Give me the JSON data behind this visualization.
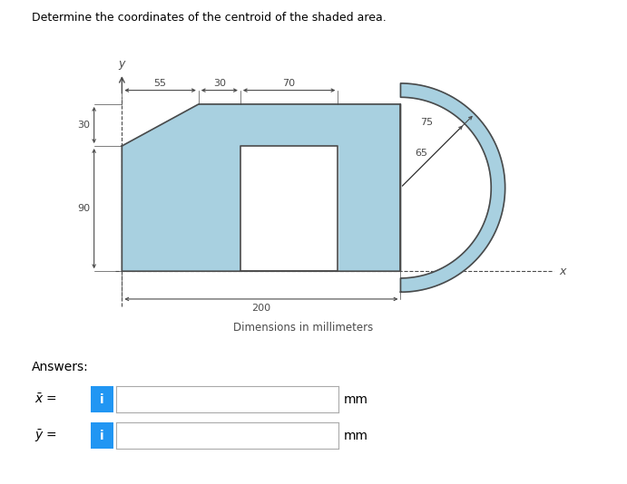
{
  "title": "Determine the coordinates of the centroid of the shaded area.",
  "dim_55": 55,
  "dim_30_horiz": 30,
  "dim_70": 70,
  "dim_30_vert": 30,
  "dim_90": 90,
  "dim_75": 75,
  "dim_65": 65,
  "dim_200": 200,
  "shade_color": "#a8d0e0",
  "shade_alpha": 1.0,
  "line_color": "#4a4a4a",
  "bg_color": "#ffffff",
  "answers_label": "Answers:",
  "mm_label": "mm",
  "dim_label": "Dimensions in millimeters",
  "x_axis_label": "x",
  "y_axis_label": "y",
  "ann_fs": 8,
  "title_fs": 9
}
